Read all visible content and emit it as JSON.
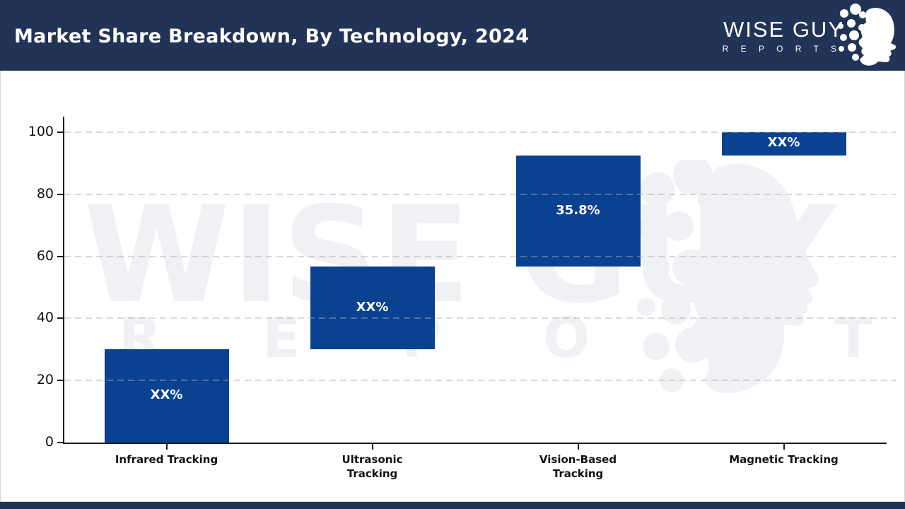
{
  "header": {
    "title": "Market Share Breakdown, By Technology, 2024",
    "logo": {
      "brand_line1": "WISE GUY",
      "brand_line2": "R E P O R T S",
      "face_icon": "dotted-face-profile-icon"
    }
  },
  "watermark": {
    "line1": "WISE GUY",
    "line2": "R E P O R T S",
    "face_icon": "dotted-face-profile-watermark"
  },
  "chart_data": {
    "type": "bar",
    "subtype": "floating-segment-waterfall",
    "title": "Market Share Breakdown, By Technology, 2024",
    "categories": [
      "Infrared Tracking",
      "Ultrasonic Tracking",
      "Vision-Based Tracking",
      "Magnetic Tracking"
    ],
    "category_label_lines": [
      [
        "Infrared Tracking"
      ],
      [
        "Ultrasonic",
        "Tracking"
      ],
      [
        "Vision-Based",
        "Tracking"
      ],
      [
        "Magnetic Tracking"
      ]
    ],
    "segments": [
      {
        "category": "Infrared Tracking",
        "start": 0,
        "end": 30.0,
        "label": "XX%"
      },
      {
        "category": "Ultrasonic Tracking",
        "start": 30.0,
        "end": 56.7,
        "label": "XX%"
      },
      {
        "category": "Vision-Based Tracking",
        "start": 56.7,
        "end": 92.5,
        "label": "35.8%"
      },
      {
        "category": "Magnetic Tracking",
        "start": 92.5,
        "end": 100.0,
        "label": "XX%"
      }
    ],
    "ylim": [
      0,
      100
    ],
    "yticks": [
      0,
      20,
      40,
      60,
      80,
      100
    ],
    "grid": "horizontal dashed",
    "legend": "none",
    "bar_color": "#0a4191",
    "bar_label_color": "#ffffff"
  },
  "colors": {
    "header_bg": "#213356",
    "footer_bg": "#213356",
    "bar": "#0a4191",
    "grid": "#d9d9d9",
    "axis": "#1c1c1c",
    "watermark": "#f0f1f4"
  }
}
